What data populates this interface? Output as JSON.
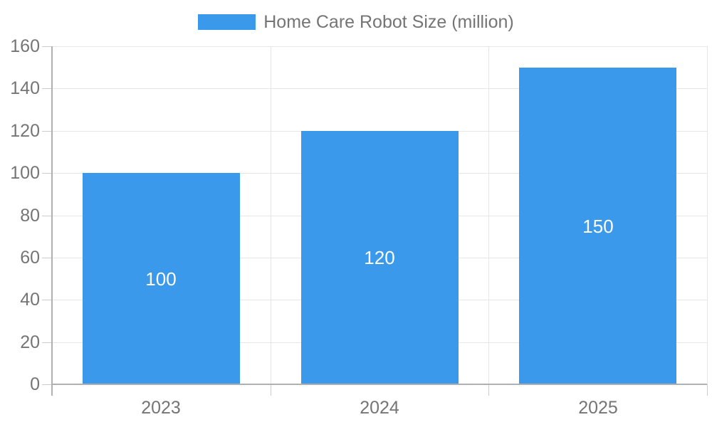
{
  "legend": {
    "label": "Home Care Robot Size (million)",
    "swatch_color": "#3B99EC"
  },
  "chart_data": {
    "type": "bar",
    "title": "Home Care Robot Size (million)",
    "series_name": "Home Care Robot Size (million)",
    "categories": [
      "2023",
      "2024",
      "2025"
    ],
    "values": [
      100,
      120,
      150
    ],
    "data_labels": [
      "100",
      "120",
      "150"
    ],
    "ylim": [
      0,
      160
    ],
    "ytick_step": 20,
    "yticks": [
      0,
      20,
      40,
      60,
      80,
      100,
      120,
      140,
      160
    ],
    "ytick_labels": [
      "0",
      "20",
      "40",
      "60",
      "80",
      "100",
      "120",
      "140",
      "160"
    ],
    "xlabel": "",
    "ylabel": "",
    "grid": true,
    "legend_position": "top",
    "colors": {
      "bar": "#3B99EC",
      "gridline": "#e6e6e6",
      "tick": "#cccccc",
      "axis": "#b0b0b0",
      "label_text": "#757575",
      "data_label_text": "#ffffff"
    }
  }
}
